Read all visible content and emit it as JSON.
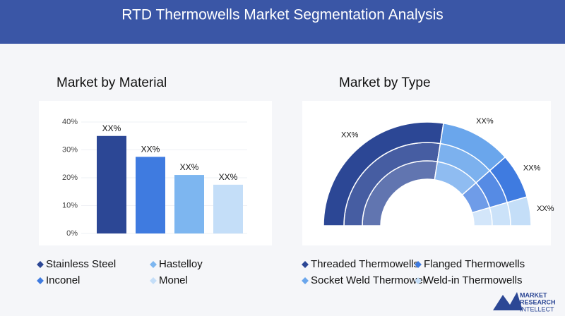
{
  "header": {
    "title": "RTD Thermowells Market Segmentation Analysis"
  },
  "chart_data": [
    {
      "type": "bar",
      "title": "Market by Material",
      "categories": [
        "Stainless Steel",
        "Inconel",
        "Hastelloy",
        "Monel"
      ],
      "values": [
        35,
        27.5,
        21,
        17.5
      ],
      "value_labels": [
        "XX%",
        "XX%",
        "XX%",
        "XX%"
      ],
      "colors": [
        "#2c4795",
        "#3f7be0",
        "#7db6f0",
        "#c4def8"
      ],
      "ylim": [
        0,
        40
      ],
      "yticks": [
        {
          "value": 0,
          "label": "0%"
        },
        {
          "value": 10,
          "label": "10%"
        },
        {
          "value": 20,
          "label": "20%"
        },
        {
          "value": 30,
          "label": "30%"
        },
        {
          "value": 40,
          "label": "40%"
        }
      ]
    },
    {
      "type": "semi-donut",
      "title": "Market by Type",
      "categories": [
        "Threaded Thermowells",
        "Socket Weld Thermowel",
        "Flanged Thermowells",
        "Weld-in Thermowells"
      ],
      "values": [
        55,
        22,
        14,
        9
      ],
      "value_labels": [
        "XX%",
        "XX%",
        "XX%",
        "XX%"
      ],
      "colors": [
        "#2c4795",
        "#6aa6ec",
        "#3f7be0",
        "#c4def8"
      ]
    }
  ],
  "logo": {
    "lines": [
      "MARKET",
      "RESEARCH",
      "INTELLECT"
    ]
  }
}
